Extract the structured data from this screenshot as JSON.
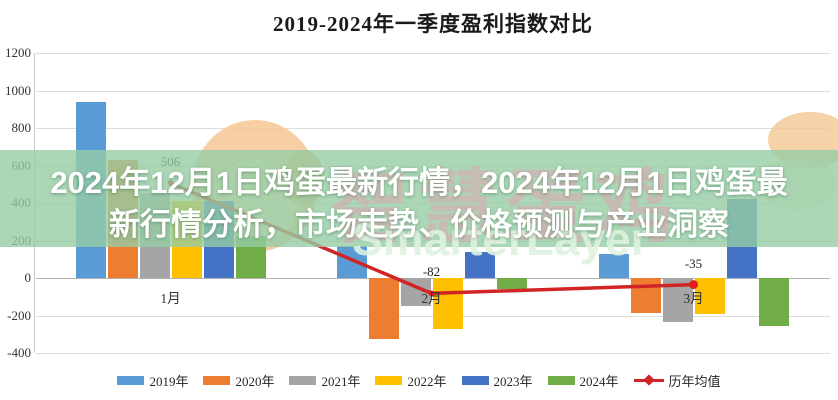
{
  "title": "2019-2024年一季度盈利指数对比",
  "banner": {
    "line1": "2024年12月1日鸡蛋最新行情，2024年12月1日鸡蛋最",
    "line2": "新行情分析，市场走势、价格预测与产业洞察"
  },
  "watermark": {
    "cn": "智慧蛋鸡",
    "en": "SmarterLayer"
  },
  "chart_data": {
    "type": "bar",
    "title": "2019-2024年一季度盈利指数对比",
    "categories": [
      "1月",
      "2月",
      "3月"
    ],
    "series": [
      {
        "name": "2019年",
        "kind": "bar",
        "color": "#5B9BD5",
        "values": [
          940,
          170,
          130
        ]
      },
      {
        "name": "2020年",
        "kind": "bar",
        "color": "#ED7D31",
        "values": [
          630,
          -325,
          -185
        ]
      },
      {
        "name": "2021年",
        "kind": "bar",
        "color": "#A5A5A5",
        "values": [
          455,
          -150,
          -235
        ]
      },
      {
        "name": "2022年",
        "kind": "bar",
        "color": "#FFC000",
        "values": [
          410,
          -270,
          -190
        ]
      },
      {
        "name": "2023年",
        "kind": "bar",
        "color": "#4472C4",
        "values": [
          410,
          140,
          420
        ]
      },
      {
        "name": "2024年",
        "kind": "bar",
        "color": "#70AD47",
        "values": [
          225,
          -60,
          -255
        ]
      },
      {
        "name": "历年均值",
        "kind": "line",
        "color": "#D02427",
        "marker_color": "#E31D1D",
        "values": [
          506,
          -82,
          -35
        ],
        "labels": [
          "506",
          "-82",
          "-35"
        ]
      }
    ],
    "yticks": [
      "1200",
      "1000",
      "800",
      "600",
      "400",
      "200",
      "0",
      "-200",
      "-400"
    ],
    "ytick_values": [
      1200,
      1000,
      800,
      600,
      400,
      200,
      0,
      -200,
      -400
    ],
    "ylim": [
      -400,
      1200
    ],
    "grid": true,
    "xlabel": "",
    "ylabel": "",
    "legend_position": "bottom"
  }
}
